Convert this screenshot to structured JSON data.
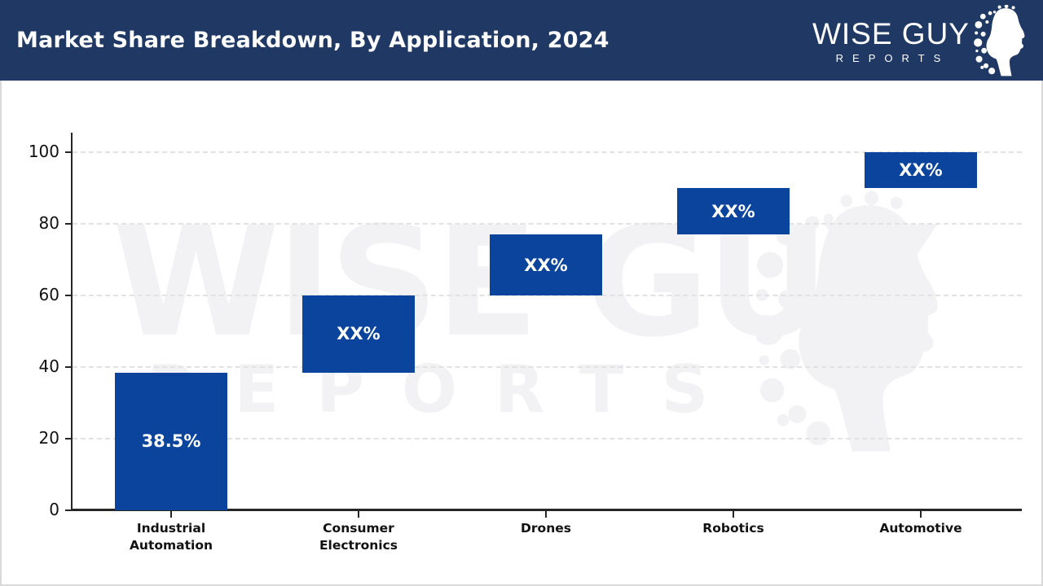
{
  "header": {
    "title": "Market Share Breakdown, By Application, 2024",
    "logo": {
      "line1": "WISE GUY",
      "line2": "REPORTS"
    }
  },
  "watermark": {
    "line1": "WISE GUY",
    "line2": "REPORTS"
  },
  "chart_data": {
    "type": "bar",
    "subtype": "waterfall",
    "title": "Market Share Breakdown, By Application, 2024",
    "categories": [
      "Industrial Automation",
      "Consumer Electronics",
      "Drones",
      "Robotics",
      "Automotive"
    ],
    "category_lines": [
      [
        "Industrial",
        "Automation"
      ],
      [
        "Consumer",
        "Electronics"
      ],
      [
        "Drones"
      ],
      [
        "Robotics"
      ],
      [
        "Automotive"
      ]
    ],
    "values": [
      38.5,
      21.5,
      17,
      13,
      10
    ],
    "cumulative_start": [
      0,
      38.5,
      60,
      77,
      90
    ],
    "cumulative_end": [
      38.5,
      60,
      77,
      90,
      100
    ],
    "bar_labels": [
      "38.5%",
      "XX%",
      "XX%",
      "XX%",
      "XX%"
    ],
    "yticks": [
      0,
      20,
      40,
      60,
      80,
      100
    ],
    "ylim": [
      0,
      105
    ],
    "xlabel": "",
    "ylabel": "",
    "grid": "horizontal-dashed",
    "legend": "none",
    "bar_color": "#0a449c",
    "bar_label_color": "#ffffff"
  },
  "colors": {
    "header_bg": "#1f3864",
    "bar": "#0a449c",
    "grid": "#e2e2e2",
    "axis": "#262626",
    "frame_border": "#d9d9d9",
    "watermark": "#f2f2f4"
  }
}
